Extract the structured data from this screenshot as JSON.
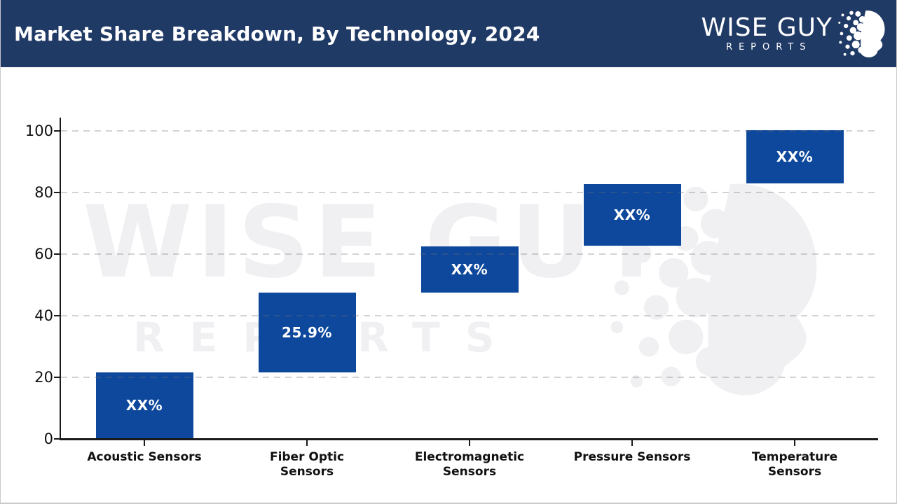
{
  "header": {
    "title": "Market Share Breakdown, By Technology, 2024",
    "bg_color": "#203a66",
    "logo": {
      "line1": "WISE GUY",
      "line2": "REPORTS"
    }
  },
  "watermark": {
    "line1": "WISE GUY",
    "line2": "REPORTS"
  },
  "chart_data": {
    "type": "bar",
    "subtype": "waterfall",
    "title": "Market Share Breakdown, By Technology, 2024",
    "categories": [
      "Acoustic Sensors",
      "Fiber Optic\nSensors",
      "Electromagnetic\nSensors",
      "Pressure Sensors",
      "Temperature\nSensors"
    ],
    "segments": [
      {
        "category": "Acoustic Sensors",
        "start": 0,
        "end": 21.7,
        "label": "XX%"
      },
      {
        "category": "Fiber Optic Sensors",
        "start": 21.7,
        "end": 47.5,
        "label": "25.9%"
      },
      {
        "category": "Electromagnetic Sensors",
        "start": 47.6,
        "end": 62.6,
        "label": "XX%"
      },
      {
        "category": "Pressure Sensors",
        "start": 62.7,
        "end": 82.7,
        "label": "XX%"
      },
      {
        "category": "Temperature Sensors",
        "start": 83.0,
        "end": 100.3,
        "label": "XX%"
      }
    ],
    "yticks": [
      0,
      20,
      40,
      60,
      80,
      100
    ],
    "ylim": [
      0,
      104
    ],
    "xlabel": "",
    "ylabel": "",
    "grid": true,
    "grid_style": "dashed",
    "legend": false,
    "bar_color": "#0d489c",
    "bar_label_color": "#ffffff",
    "axis_color": "#1a1a1a",
    "grid_color": "#d3d3d3"
  }
}
